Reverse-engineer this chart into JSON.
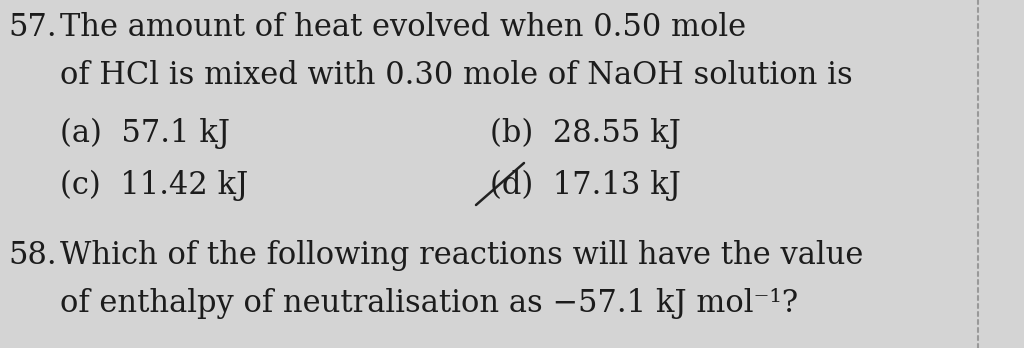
{
  "background_color": "#d4d4d4",
  "text_color": "#1c1c1c",
  "q57_number": "57.",
  "q57_line1": "The amount of heat evolved when 0.50 mole",
  "q57_line2": "of HCl is mixed with 0.30 mole of NaOH solution is",
  "q57_a": "(a)  57.1 kJ",
  "q57_b": "(b)  28.55 kJ",
  "q57_c": "(c)  11.42 kJ",
  "q57_d": "(d)  17.13 kJ",
  "q58_number": "58.",
  "q58_line1": "Which of the following reactions will have the value",
  "q58_line2": "of enthalpy of neutralisation as −57.1 kJ mol⁻¹?",
  "font_size_main": 22,
  "font_size_options": 22,
  "font_family": "serif",
  "dotted_line_x": 0.955,
  "dotted_color": "#999999"
}
